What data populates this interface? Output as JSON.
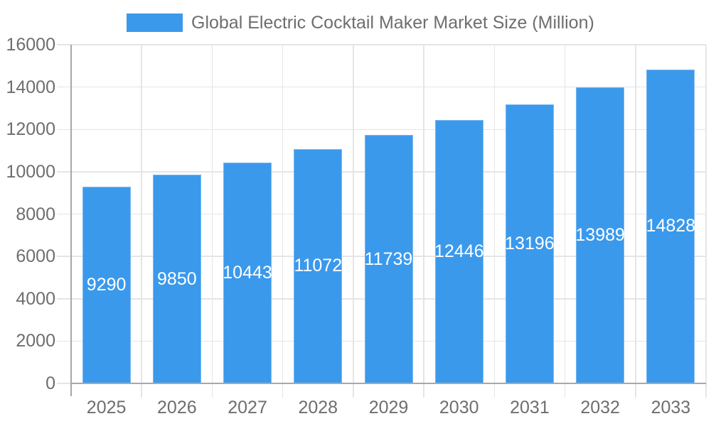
{
  "legend": {
    "label": "Global Electric Cocktail Maker Market Size (Million)"
  },
  "chart_data": {
    "type": "bar",
    "title": "Global Electric Cocktail Maker Market Size (Million)",
    "categories": [
      "2025",
      "2026",
      "2027",
      "2028",
      "2029",
      "2030",
      "2031",
      "2032",
      "2033"
    ],
    "values": [
      9290,
      9850,
      10443,
      11072,
      11739,
      12446,
      13196,
      13989,
      14828
    ],
    "value_labels_shown": true,
    "xlabel": "",
    "ylabel": "",
    "ylim": [
      0,
      16000
    ],
    "yticks": [
      0,
      2000,
      4000,
      6000,
      8000,
      10000,
      12000,
      14000,
      16000
    ],
    "grid": true,
    "legend_position": "top",
    "colors": {
      "bar": "#3b99ec",
      "bar_border": "#79b9f0",
      "grid": "#e5e5e5",
      "axis": "#a8a8a8",
      "tick_text": "#6e6e6e",
      "value_label": "#ffffff",
      "background": "#ffffff"
    }
  }
}
